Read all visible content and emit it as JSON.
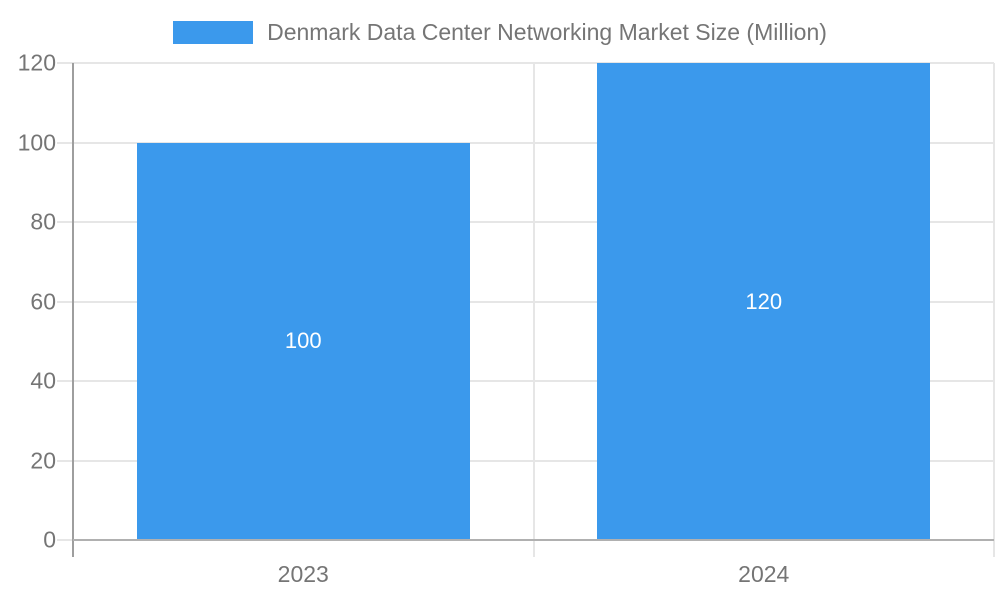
{
  "legend": {
    "series_label": "Denmark Data Center Networking Market Size (Million)",
    "swatch_color": "#3B99EC"
  },
  "chart_data": {
    "type": "bar",
    "title": "Denmark Data Center Networking Market Size (Million)",
    "categories": [
      "2023",
      "2024"
    ],
    "values": [
      100,
      120
    ],
    "bar_labels": [
      "100",
      "120"
    ],
    "xlabel": "",
    "ylabel": "",
    "ylim": [
      0,
      120
    ],
    "yticks": [
      0,
      20,
      40,
      60,
      80,
      100,
      120
    ],
    "grid": true,
    "legend_position": "top-center",
    "colors": {
      "bar": "#3B99EC",
      "bar_label_text": "#ffffff",
      "axis_text": "#757575",
      "grid_line": "#e6e6e6",
      "x_axis_line": "#b0b0b0",
      "y_axis_line": "#9e9e9e",
      "background": "#ffffff"
    }
  }
}
